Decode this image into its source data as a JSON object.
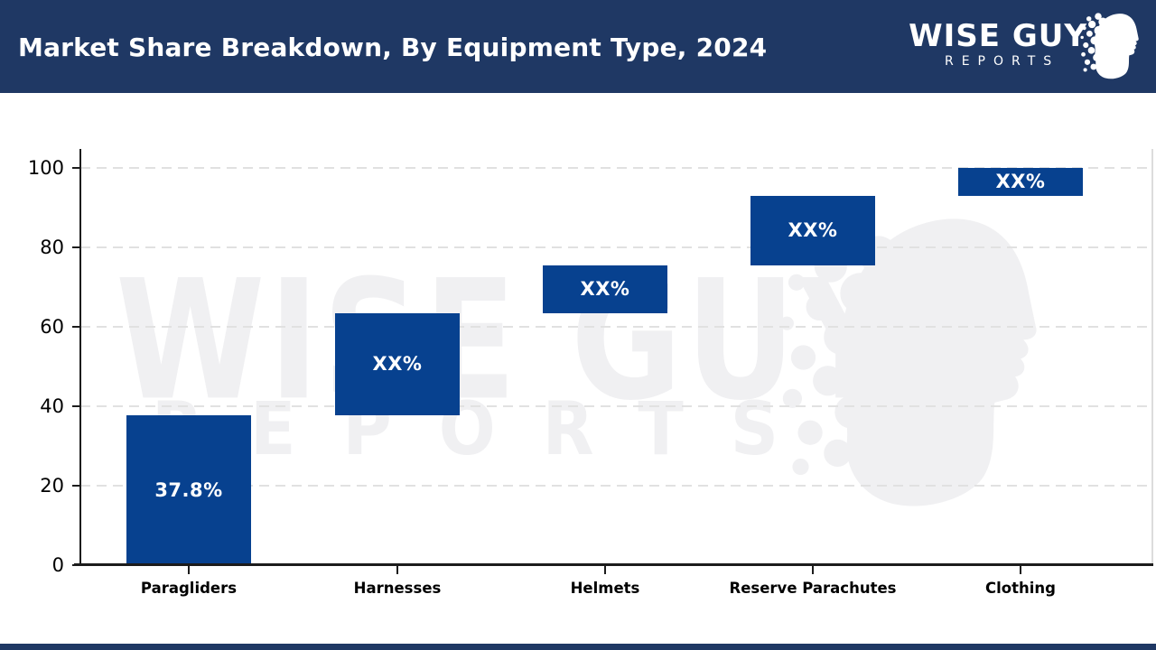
{
  "header": {
    "title": "Market Share Breakdown, By Equipment Type, 2024",
    "logo": {
      "line1": "WISE GUY",
      "line2": "REPORTS"
    }
  },
  "watermark": {
    "line1": "WISE GUY",
    "line2": "REPORTS"
  },
  "colors": {
    "header_navy": "#1f3864",
    "bar_blue": "#07418f",
    "gridline": "#e1e1e1",
    "axis": "#1c1c1c",
    "watermark_gray": "#f0f0f2",
    "bar_label_white": "#ffffff"
  },
  "chart_data": {
    "type": "bar",
    "subtype": "waterfall",
    "title": "Market Share Breakdown, By Equipment Type, 2024",
    "xlabel": "",
    "ylabel": "",
    "ylim": [
      0,
      104
    ],
    "y_ticks": [
      0,
      20,
      40,
      60,
      80,
      100
    ],
    "grid": "horizontal-dashed",
    "legend": "none",
    "categories": [
      "Paragliders",
      "Harnesses",
      "Helmets",
      "Reserve Parachutes",
      "Clothing"
    ],
    "segments": [
      {
        "category": "Paragliders",
        "start": 0,
        "end": 37.8,
        "label": "37.8%"
      },
      {
        "category": "Harnesses",
        "start": 37.8,
        "end": 63.5,
        "label": "XX%"
      },
      {
        "category": "Helmets",
        "start": 63.5,
        "end": 75.5,
        "label": "XX%"
      },
      {
        "category": "Reserve Parachutes",
        "start": 75.5,
        "end": 93,
        "label": "XX%"
      },
      {
        "category": "Clothing",
        "start": 93,
        "end": 100,
        "label": "XX%"
      }
    ]
  }
}
